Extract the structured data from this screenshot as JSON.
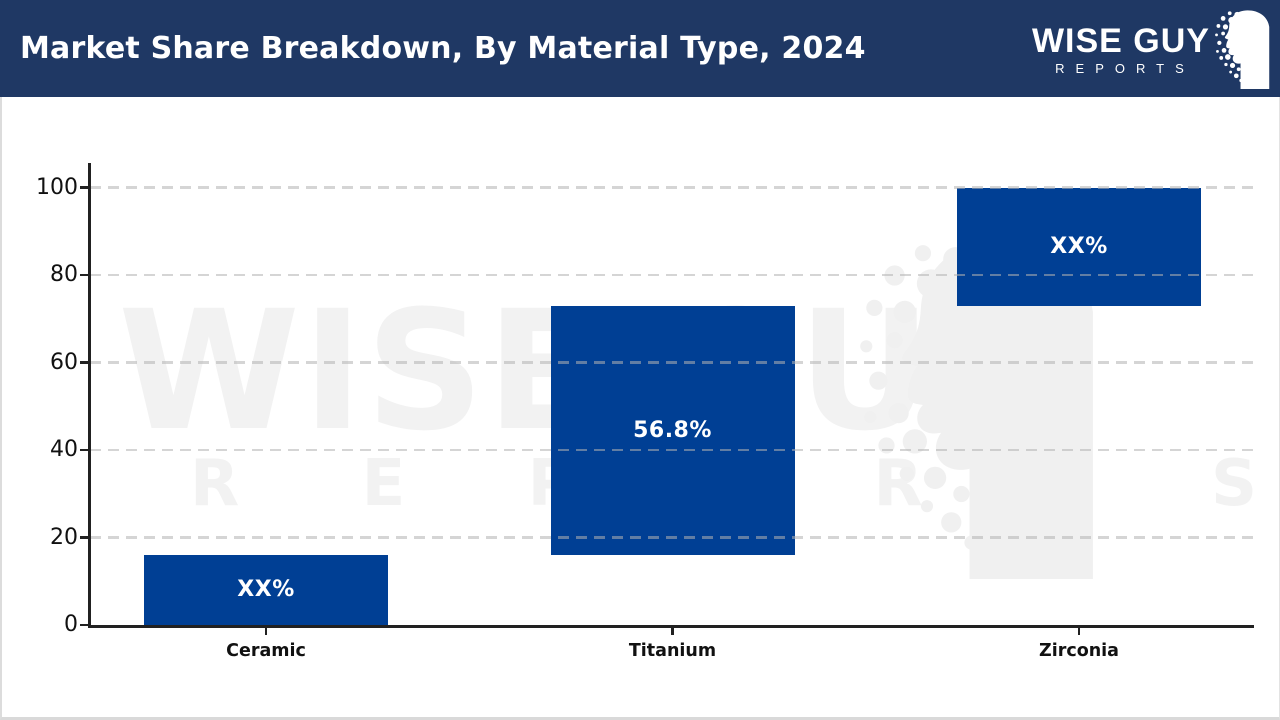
{
  "header": {
    "title": "Market Share Breakdown, By Material Type, 2024",
    "logo": {
      "wordmark": "WISE GUY",
      "subtext": "REPORTS"
    }
  },
  "watermark": {
    "wordmark": "WISE GUY",
    "subtext": "R E P O R T S"
  },
  "chart_data": {
    "type": "bar",
    "variant": "waterfall",
    "title": "Market Share Breakdown, By Material Type, 2024",
    "categories": [
      "Ceramic",
      "Titanium",
      "Zirconia"
    ],
    "segments": [
      {
        "category": "Ceramic",
        "start": 0,
        "end": 16.1,
        "label": "XX%"
      },
      {
        "category": "Titanium",
        "start": 16.1,
        "end": 72.9,
        "label": "56.8%"
      },
      {
        "category": "Zirconia",
        "start": 72.9,
        "end": 100,
        "label": "XX%"
      }
    ],
    "yticks": [
      0,
      20,
      40,
      60,
      80,
      100
    ],
    "ylim": [
      0,
      105.6
    ],
    "xlabel": "",
    "ylabel": "",
    "grid": "horizontal-dashed",
    "legend": "none",
    "bar_color": "#003F94",
    "bar_label_color": "#FFFFFF"
  },
  "colors": {
    "header_bg": "#1F3864",
    "bar": "#003F94",
    "gridline": "#D9D9D9",
    "axis": "#212121",
    "watermark": "#F2F2F2"
  }
}
